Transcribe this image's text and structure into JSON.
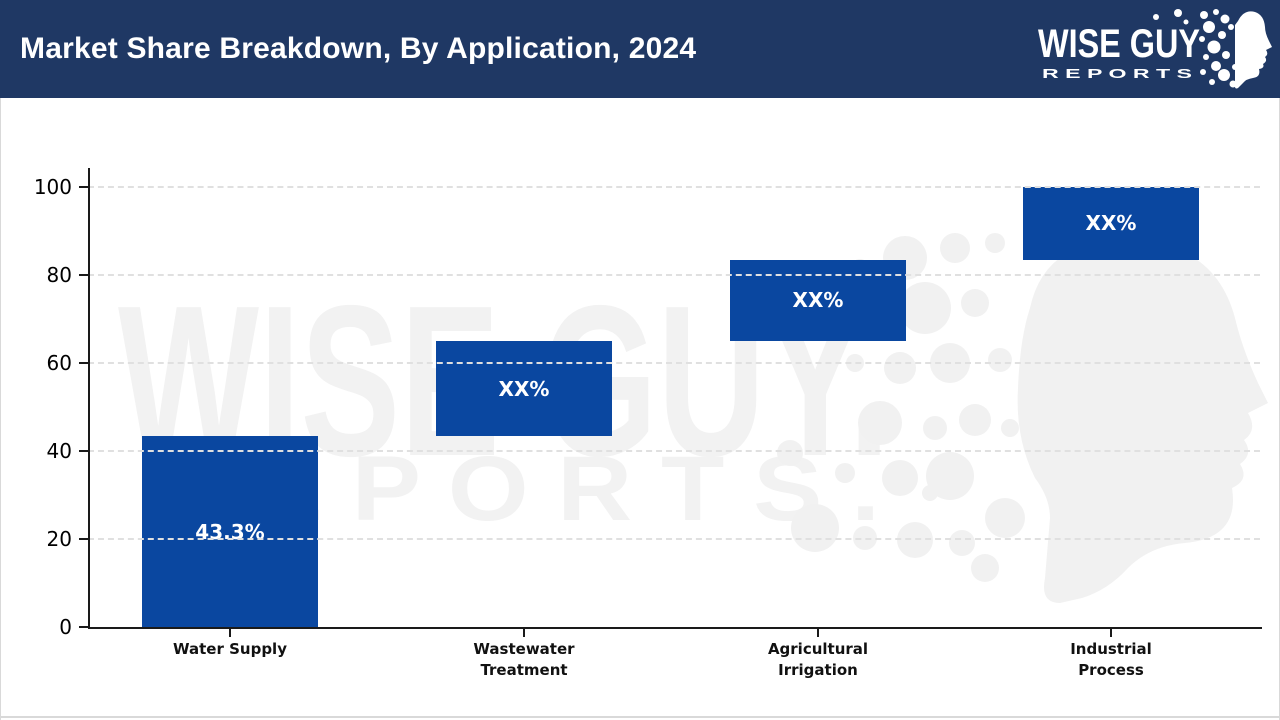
{
  "header": {
    "title": "Market Share Breakdown, By Application, 2024",
    "logo": {
      "line1": "WISE GUY",
      "line2": "R E P O R T S"
    }
  },
  "watermark": {
    "line1": "WISE GUY.",
    "line2": "R E P O R T S ."
  },
  "colors": {
    "header_bg": "#1f3864",
    "bar": "#0a47a0",
    "bar_label": "#ffffff",
    "grid": "#e0e0e0",
    "watermark": "#f2f2f2"
  },
  "chart_data": {
    "type": "bar",
    "subtype": "waterfall",
    "title": "Market Share Breakdown, By Application, 2024",
    "categories": [
      "Water Supply",
      "Wastewater Treatment",
      "Agricultural Irrigation",
      "Industrial Process"
    ],
    "series": [
      {
        "name": "Market Share",
        "segments": [
          {
            "category": "Water Supply",
            "start": 0,
            "end": 43.3,
            "label": "43.3%"
          },
          {
            "category": "Wastewater Treatment",
            "start": 43.3,
            "end": 65.0,
            "label": "XX%"
          },
          {
            "category": "Agricultural Irrigation",
            "start": 65.0,
            "end": 83.5,
            "label": "XX%"
          },
          {
            "category": "Industrial Process",
            "start": 83.5,
            "end": 100,
            "label": "XX%"
          }
        ]
      }
    ],
    "xlabel": "",
    "ylabel": "",
    "ylim": [
      0,
      100
    ],
    "yticks": [
      0,
      20,
      40,
      60,
      80,
      100
    ],
    "grid": "horizontal dashed",
    "legend": "none",
    "bar_color": "#0a47a0",
    "label_color": "#ffffff"
  }
}
